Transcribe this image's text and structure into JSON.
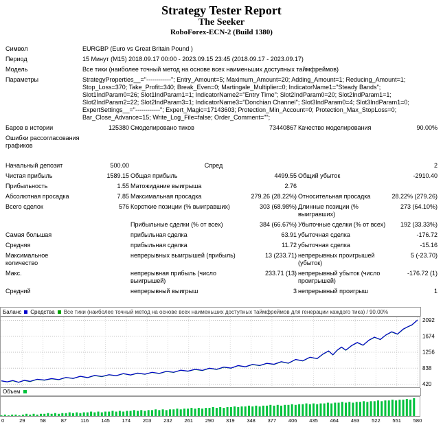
{
  "report": {
    "title": "Strategy Tester Report",
    "strategy": "The Seeker",
    "server": "RoboForex-ECN-2 (Build 1380)"
  },
  "stats": [
    {
      "label": "Символ",
      "value": "EURGBP (Euro vs Great Britain Pound )",
      "wide": true
    },
    {
      "label": "Период",
      "value": "15 Минут (M15) 2018.09.17 00:00 - 2023.09.15 23:45 (2018.09.17 - 2023.09.17)",
      "wide": true
    },
    {
      "label": "Модель",
      "value": "Все тики (наиболее точный метод на основе всех наименьших доступных таймфреймов)",
      "wide": true
    },
    {
      "label": "Параметры",
      "value": "StrategyProperties__=\"------------\"; Entry_Amount=5; Maximum_Amount=20; Adding_Amount=1; Reducing_Amount=1; Stop_Loss=370; Take_Profit=340; Break_Even=0; Martingale_Multiplier=0; IndicatorName1=\"Steady Bands\"; Slot1IndParam0=26; Slot1IndParam1=1; IndicatorName2=\"Entry Time\"; Slot2IndParam0=20; Slot2IndParam1=1; Slot2IndParam2=22; Slot2IndParam3=1; IndicatorName3=\"Donchian Channel\"; Slot3IndParam0=4; Slot3IndParam1=0; ExpertSettings__=\"------------\"; Expert_Magic=17143603; Protection_Min_Account=0; Protection_Max_StopLoss=0; Bar_Close_Advance=15; Write_Log_File=false; Order_Comment=\"\";",
      "wide": true
    },
    {
      "label": "Баров в истории",
      "value": "125380",
      "label2": "Смоделировано тиков",
      "value2": "73440867",
      "label3": "Качество моделирования",
      "value3": "90.00%"
    },
    {
      "label": "Ошибки рассогласования графиков",
      "value": "",
      "label2": "",
      "value2": "",
      "label3": "",
      "value3": ""
    },
    {
      "label": "Начальный депозит",
      "value": "500.00",
      "label2": "Спред",
      "value2": "2",
      "spread": true,
      "gap": true
    },
    {
      "label": "Чистая прибыль",
      "value": "1589.15",
      "label2": "Общая прибыль",
      "value2": "4499.55",
      "label3": "Общий убыток",
      "value3": "-2910.40"
    },
    {
      "label": "Прибыльность",
      "value": "1.55",
      "label2": "Матожидание выигрыша",
      "value2": "2.76",
      "label3": "",
      "value3": ""
    },
    {
      "label": "Абсолютная просадка",
      "value": "7.85",
      "label2": "Максимальная просадка",
      "value2": "279.26 (28.22%)",
      "label3": "Относительная просадка",
      "value3": "28.22% (279.26)",
      "narrowlabel": true
    },
    {
      "label": "Всего сделок",
      "value": "576",
      "label2": "Короткие позиции (% выигравших)",
      "value2": "303 (68.98%)",
      "label3": "Длинные позиции (% выигравших)",
      "value3": "273 (64.10%)"
    },
    {
      "label": "",
      "value": "",
      "label2": "Прибыльные сделки (% от всех)",
      "value2": "384 (66.67%)",
      "label3": "Убыточные сделки (% от всех)",
      "value3": "192 (33.33%)"
    },
    {
      "label": "Самая большая",
      "value": "",
      "label2": "прибыльная сделка",
      "value2": "63.91",
      "label3": "убыточная сделка",
      "value3": "-176.72"
    },
    {
      "label": "Средняя",
      "value": "",
      "label2": "прибыльная сделка",
      "value2": "11.72",
      "label3": "убыточная сделка",
      "value3": "-15.16"
    },
    {
      "label": "Максимальное количество",
      "value": "",
      "label2": "непрерывных выигрышей (прибыль)",
      "value2": "13 (233.71)",
      "label3": "непрерывных проигрышей (убыток)",
      "value3": "5 (-23.70)"
    },
    {
      "label": "Макс.",
      "value": "",
      "label2": "непрерывная прибыль (число выигрышей)",
      "value2": "233.71 (13)",
      "label3": "непрерывный убыток (число проигрышей)",
      "value3": "-176.72 (1)"
    },
    {
      "label": "Средний",
      "value": "",
      "label2": "непрерывный выигрыш",
      "value2": "3",
      "label3": "непрерывный проигрыш",
      "value3": "1"
    }
  ],
  "chart_data": {
    "type": "line",
    "legend": {
      "balance": "Баланс",
      "equity": "Средства",
      "info": "Все тики (наиболее точный метод на основе всех наименьших доступных таймфреймов для генерации каждого тика) / 90.00%",
      "volume": "Объем"
    },
    "colors": {
      "balance": "#0000CC",
      "equity": "#00A000",
      "volume": "#00C23C",
      "grid": "#BDBDBD",
      "vgrid": "#DCDCDC",
      "border": "#9A9A9A"
    },
    "ylim": [
      420,
      2092
    ],
    "y_ticks": [
      420,
      838,
      1256,
      1674,
      2092
    ],
    "xlim": [
      0,
      580
    ],
    "x_ticks": [
      0,
      29,
      58,
      87,
      116,
      145,
      174,
      203,
      232,
      261,
      290,
      319,
      348,
      377,
      406,
      435,
      464,
      493,
      522,
      551,
      580
    ],
    "series": [
      {
        "name": "Баланс",
        "x": [
          0,
          8,
          16,
          24,
          32,
          40,
          50,
          60,
          70,
          80,
          90,
          100,
          110,
          120,
          130,
          140,
          150,
          160,
          170,
          180,
          190,
          200,
          210,
          220,
          230,
          240,
          250,
          260,
          270,
          280,
          290,
          300,
          310,
          320,
          330,
          340,
          350,
          360,
          370,
          380,
          390,
          400,
          410,
          420,
          430,
          440,
          448,
          456,
          462,
          468,
          474,
          480,
          488,
          496,
          504,
          512,
          520,
          528,
          536,
          544,
          552,
          560,
          566,
          572,
          580
        ],
        "values": [
          500,
          472,
          506,
          462,
          512,
          484,
          540,
          518,
          556,
          532,
          588,
          562,
          618,
          584,
          640,
          612,
          660,
          634,
          688,
          652,
          700,
          672,
          722,
          694,
          748,
          722,
          778,
          752,
          800,
          772,
          828,
          800,
          858,
          832,
          898,
          868,
          928,
          900,
          958,
          932,
          1000,
          962,
          1058,
          1022,
          1118,
          1082,
          1198,
          1282,
          1180,
          1302,
          1382,
          1302,
          1422,
          1502,
          1432,
          1562,
          1642,
          1582,
          1702,
          1782,
          1722,
          1852,
          1912,
          1962,
          2092
        ]
      },
      {
        "name": "Средства",
        "derived_from": "Баланс",
        "offset": -6
      }
    ],
    "volume": {
      "name": "Объем",
      "step": 5,
      "vmax": 24,
      "values": [
        1,
        2,
        1,
        2,
        2,
        1,
        2,
        3,
        2,
        3,
        2,
        3,
        3,
        4,
        3,
        4,
        3,
        4,
        4,
        5,
        4,
        5,
        4,
        5,
        5,
        6,
        5,
        6,
        5,
        6,
        6,
        7,
        6,
        7,
        6,
        7,
        7,
        8,
        7,
        8,
        7,
        8,
        8,
        9,
        8,
        9,
        8,
        9,
        9,
        10,
        9,
        10,
        10,
        11,
        10,
        11,
        10,
        11,
        11,
        12,
        11,
        12,
        11,
        12,
        12,
        13,
        12,
        13,
        13,
        14,
        13,
        14,
        13,
        14,
        14,
        15,
        14,
        15,
        14,
        15,
        15,
        16,
        15,
        16,
        16,
        17,
        16,
        17,
        16,
        17,
        17,
        18,
        17,
        18,
        18,
        19,
        18,
        19,
        18,
        19,
        19,
        20,
        19,
        20,
        20,
        21,
        20,
        21,
        21,
        22,
        21,
        22,
        22,
        23,
        22,
        24
      ]
    }
  }
}
